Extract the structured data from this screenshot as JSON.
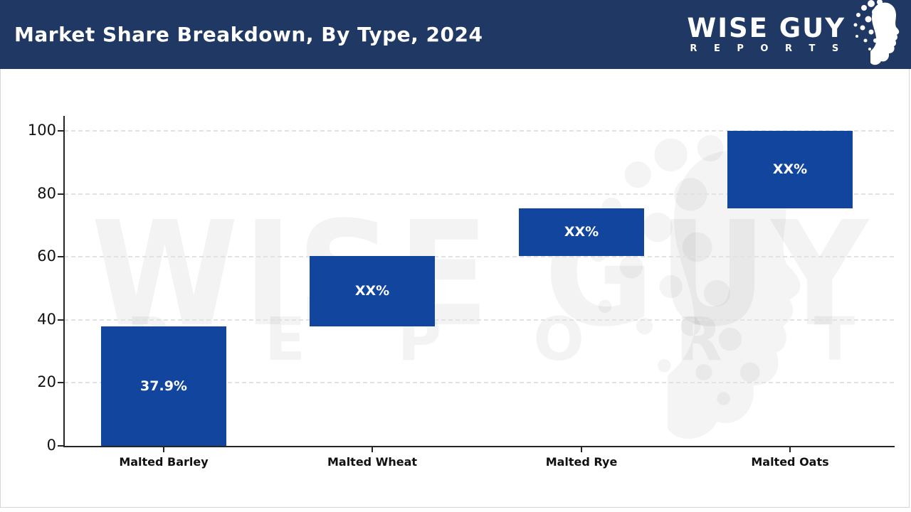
{
  "header": {
    "title": "Market Share Breakdown, By Type, 2024",
    "bg_color": "#1F3864",
    "logo": {
      "line1": "WISE GUY",
      "line2": "R E P O R T S"
    }
  },
  "watermark": {
    "line1": "WISE GUY",
    "line2": "R E P O R T S"
  },
  "chart_data": {
    "type": "bar",
    "subtype": "waterfall",
    "title": "Market Share Breakdown, By Type, 2024",
    "xlabel": "",
    "ylabel": "",
    "legend": "none",
    "grid": "horizontal-dashed",
    "categories": [
      "Malted Barley",
      "Malted Wheat",
      "Malted Rye",
      "Malted Oats"
    ],
    "segments": [
      {
        "category": "Malted Barley",
        "start": 0,
        "end": 37.9,
        "value": 37.9,
        "label": "37.9%"
      },
      {
        "category": "Malted Wheat",
        "start": 37.9,
        "end": 60.3,
        "value": 22.4,
        "label": "XX%"
      },
      {
        "category": "Malted Rye",
        "start": 60.3,
        "end": 75.5,
        "value": 15.2,
        "label": "XX%"
      },
      {
        "category": "Malted Oats",
        "start": 75.5,
        "end": 100,
        "value": 24.5,
        "label": "XX%"
      }
    ],
    "y_ticks": [
      0,
      20,
      40,
      60,
      80,
      100
    ],
    "ylim": [
      0,
      104.5
    ],
    "bar_color": "#11459E",
    "bar_label_color": "#FFFFFF",
    "axis_color": "#262626",
    "grid_color": "#E2E2E2"
  }
}
